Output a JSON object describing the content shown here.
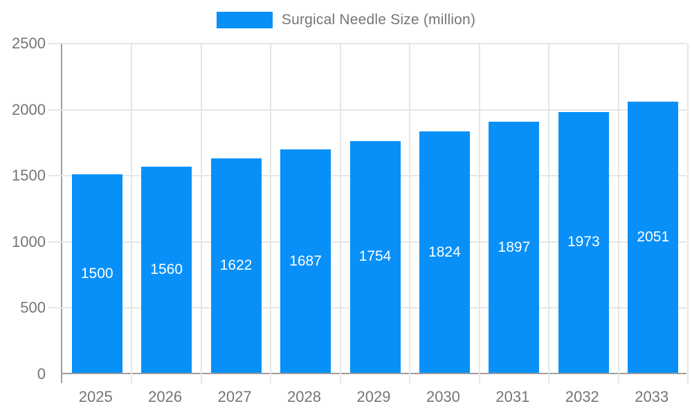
{
  "chart_data": {
    "type": "bar",
    "title": "Surgical Needle Size (million)",
    "legend": {
      "label": "Surgical Needle Size (million)",
      "position": "top"
    },
    "categories": [
      "2025",
      "2026",
      "2027",
      "2028",
      "2029",
      "2030",
      "2031",
      "2032",
      "2033"
    ],
    "series": [
      {
        "name": "Surgical Needle Size (million)",
        "values": [
          1500,
          1560,
          1622,
          1687,
          1754,
          1824,
          1897,
          1973,
          2051
        ]
      }
    ],
    "value_labels_shown": true,
    "xlabel": "",
    "ylabel": "",
    "ylim": [
      0,
      2500
    ],
    "yticks": [
      0,
      500,
      1000,
      1500,
      2000,
      2500
    ],
    "grid": true,
    "colors": {
      "bar": "#0890f8",
      "value_label": "#ffffff",
      "axis_text": "#757575",
      "gridline": "#e6e6e6",
      "axis_line": "#9e9e9e"
    }
  }
}
